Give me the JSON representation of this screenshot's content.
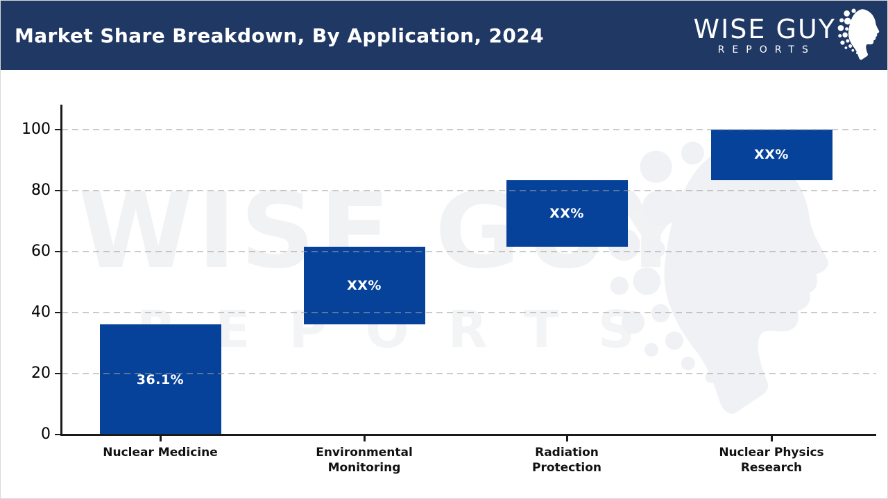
{
  "header": {
    "title": "Market Share Breakdown, By Application, 2024",
    "logo": {
      "line1": "WISE GUY",
      "line2": "REPORTS"
    }
  },
  "watermark": {
    "line1": "WISE GUY",
    "line2": "REPORTS"
  },
  "colors": {
    "header_bg": "#1f3864",
    "bar": "#07429a",
    "watermark_gray": "#f1f2f4"
  },
  "chart_data": {
    "type": "bar",
    "subtype": "floating-waterfall",
    "title": "Market Share Breakdown, By Application, 2024",
    "categories": [
      "Nuclear Medicine",
      "Environmental\nMonitoring",
      "Radiation\nProtection",
      "Nuclear Physics\nResearch"
    ],
    "bars": [
      {
        "category": "Nuclear Medicine",
        "start": 0,
        "end": 36.1,
        "label": "36.1%"
      },
      {
        "category": "Environmental Monitoring",
        "start": 36.1,
        "end": 61.7,
        "label": "XX%"
      },
      {
        "category": "Radiation Protection",
        "start": 61.7,
        "end": 83.5,
        "label": "XX%"
      },
      {
        "category": "Nuclear Physics Research",
        "start": 83.5,
        "end": 100,
        "label": "XX%"
      }
    ],
    "yticks": [
      0,
      20,
      40,
      60,
      80,
      100
    ],
    "ylim": [
      0,
      100
    ],
    "ylabel": "",
    "xlabel": "",
    "grid": {
      "horizontal": true,
      "style": "dashed",
      "drawn_over_bars": true
    },
    "bar_color": "#07429a",
    "legend": null
  }
}
